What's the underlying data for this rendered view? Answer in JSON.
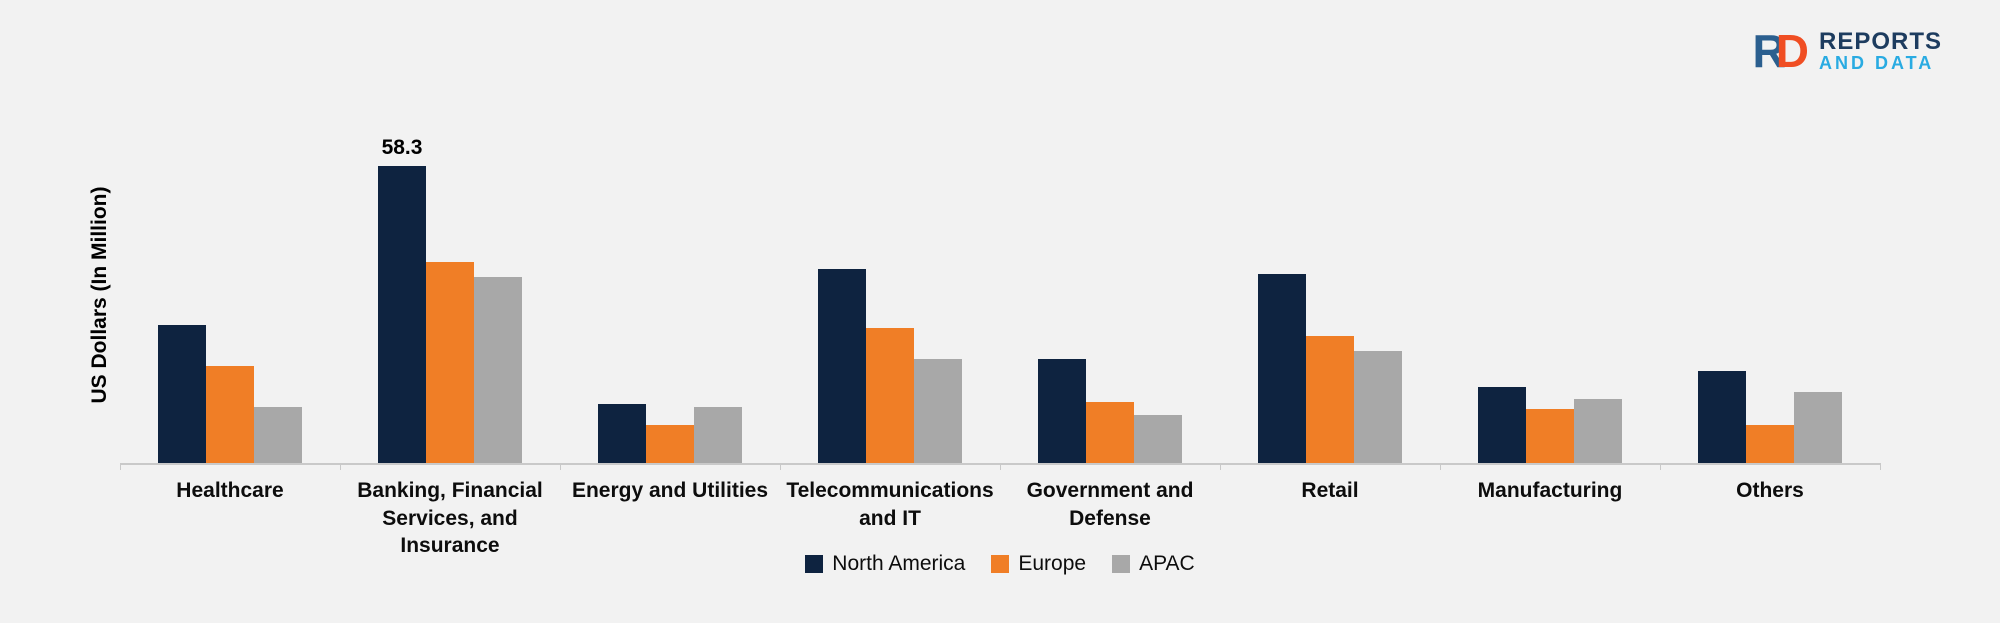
{
  "logo": {
    "mark_r": "R",
    "mark_d": "D",
    "line1": "REPORTS",
    "line2": "AND DATA"
  },
  "chart_data": {
    "type": "bar",
    "title": "",
    "ylabel": "US Dollars (In Million)",
    "categories": [
      "Healthcare",
      "Banking, Financial Services, and Insurance",
      "Energy and Utilities",
      "Telecommunications and IT",
      "Government and Defense",
      "Retail",
      "Manufacturing",
      "Others"
    ],
    "series": [
      {
        "name": "North America",
        "color": "#0e2340",
        "values": [
          27,
          58.3,
          11.5,
          38,
          20.5,
          37,
          15,
          18
        ]
      },
      {
        "name": "Europe",
        "color": "#f07e26",
        "values": [
          19,
          39.5,
          7.5,
          26.5,
          12,
          25,
          10.5,
          7.5
        ]
      },
      {
        "name": "APAC",
        "color": "#a8a8a8",
        "values": [
          11,
          36.5,
          11,
          20.5,
          9.5,
          22,
          12.5,
          14
        ]
      }
    ],
    "ylim": [
      0,
      62
    ],
    "grid": false,
    "legend_position": "bottom",
    "annotations": [
      {
        "series": 0,
        "category": 1,
        "text": "58.3"
      }
    ]
  }
}
